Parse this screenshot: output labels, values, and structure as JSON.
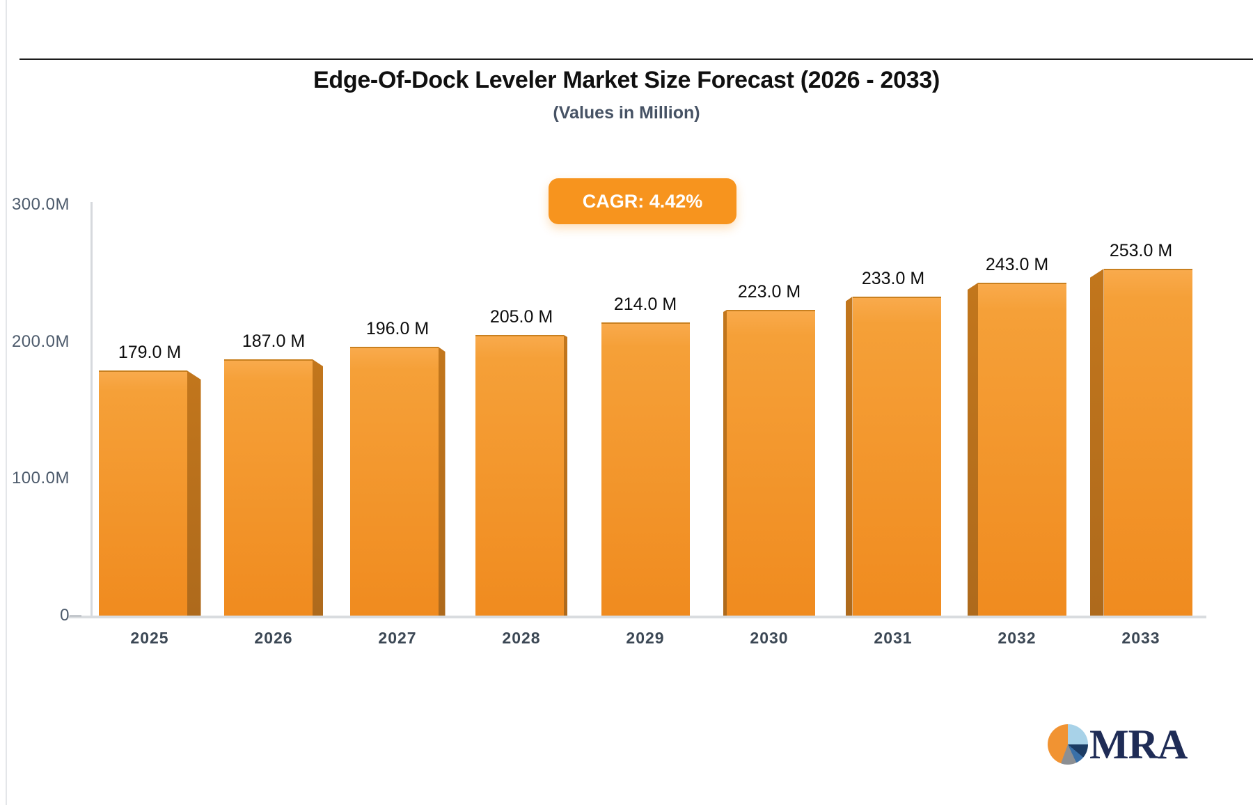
{
  "title": "Edge-Of-Dock Leveler Market Size Forecast (2026 - 2033)",
  "subtitle": "(Values in Million)",
  "badge": {
    "label": "CAGR: 4.42%",
    "bg_color": "#F7941E",
    "text_color": "#FFFFFF"
  },
  "chart_data": {
    "type": "bar",
    "categories": [
      "2025",
      "2026",
      "2027",
      "2028",
      "2029",
      "2030",
      "2031",
      "2032",
      "2033"
    ],
    "values": [
      179,
      187,
      196,
      205,
      214,
      223,
      233,
      243,
      253
    ],
    "value_labels": [
      "179.0 M",
      "187.0 M",
      "196.0 M",
      "205.0 M",
      "214.0 M",
      "223.0 M",
      "233.0 M",
      "243.0 M",
      "253.0 M"
    ],
    "title": "Edge-Of-Dock Leveler Market Size Forecast (2026 - 2033)",
    "xlabel": "",
    "ylabel": "",
    "ylim": [
      0,
      300
    ],
    "grid": false,
    "legend": false,
    "style": "3d-perspective-bars",
    "yticks": [
      {
        "label": "300.0M",
        "value": 300,
        "dash": false
      },
      {
        "label": "200.0M",
        "value": 200,
        "dash": false
      },
      {
        "label": "100.0M",
        "value": 100,
        "dash": false
      },
      {
        "label": "0",
        "value": 0,
        "dash": true
      }
    ],
    "colors": {
      "bar_top": "#F9AA4C",
      "bar_mid": "#F5A038",
      "bar_bottom": "#F08B1F",
      "bar_side_top": "#C2761C",
      "bar_side_bottom": "#AE6A1C",
      "bar_top_edge": "#C9801F"
    }
  },
  "logo": {
    "text": "MRA",
    "text_color": "#1F2C56",
    "pie_colors": {
      "light_blue": "#A8D2E8",
      "navy": "#1C3C64",
      "steel_blue": "#3A70A8",
      "gray": "#8C8F93",
      "orange": "#F19332"
    }
  }
}
